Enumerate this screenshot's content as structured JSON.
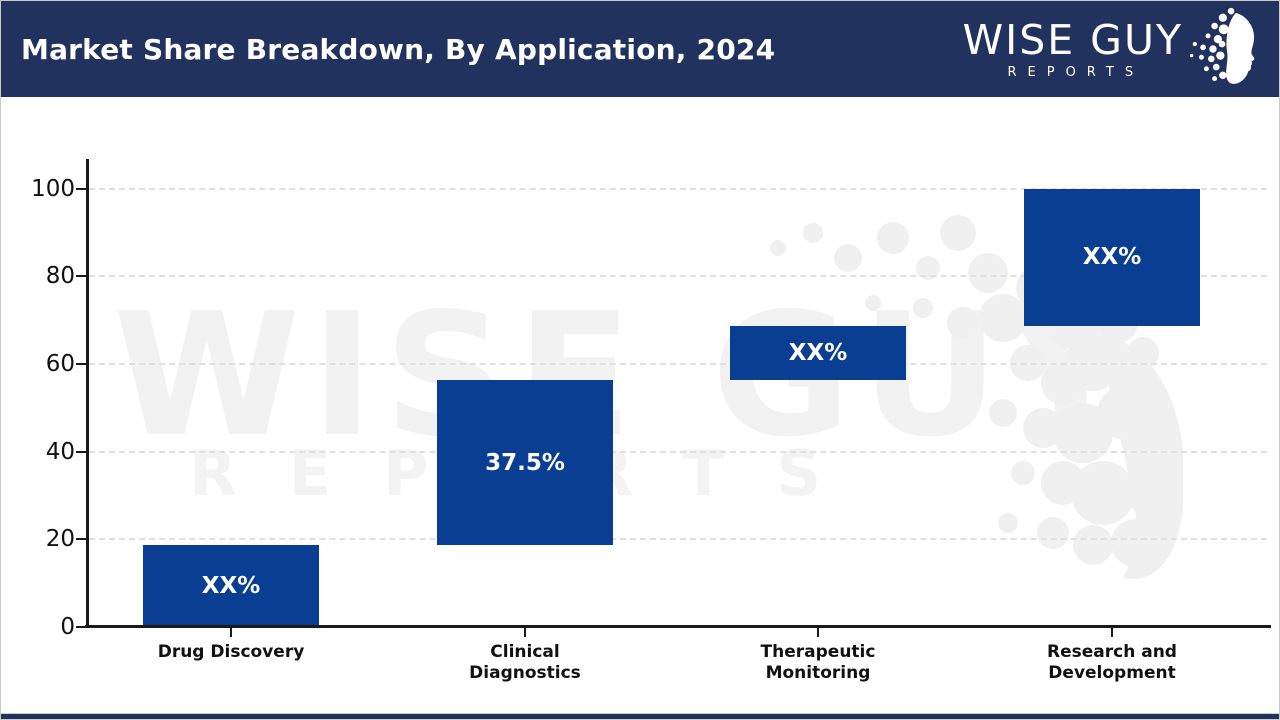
{
  "header": {
    "title": "Market Share Breakdown, By Application, 2024",
    "bg_color": "#21325e",
    "logo": {
      "line1": "WISE GUY",
      "line2": "REPORTS"
    }
  },
  "watermark": {
    "line1": "WISE GUY",
    "line2": "REPORTS"
  },
  "chart_data": {
    "type": "bar",
    "subtype": "floating-segment-waterfall",
    "title": "Market Share Breakdown, By Application, 2024",
    "categories": [
      "Drug Discovery",
      "Clinical Diagnostics",
      "Therapeutic Monitoring",
      "Research and Development"
    ],
    "bars": [
      {
        "category": "Drug Discovery",
        "label_lines": [
          "Drug Discovery"
        ],
        "start": 0,
        "end": 18.75,
        "value_label": "XX%"
      },
      {
        "category": "Clinical Diagnostics",
        "label_lines": [
          "Clinical",
          "Diagnostics"
        ],
        "start": 18.75,
        "end": 56.25,
        "value_label": "37.5%"
      },
      {
        "category": "Therapeutic Monitoring",
        "label_lines": [
          "Therapeutic",
          "Monitoring"
        ],
        "start": 56.25,
        "end": 68.75,
        "value_label": "XX%"
      },
      {
        "category": "Research and Development",
        "label_lines": [
          "Research and",
          "Development"
        ],
        "start": 68.75,
        "end": 100,
        "value_label": "XX%"
      }
    ],
    "ylim": [
      0,
      100
    ],
    "yticks": [
      0,
      20,
      40,
      60,
      80,
      100
    ],
    "grid": "horizontal-dashed",
    "legend": "none",
    "bar_color": "#0a3e92",
    "axis_color": "#1a1a1a",
    "gridline_color": "#e0e0e0"
  }
}
